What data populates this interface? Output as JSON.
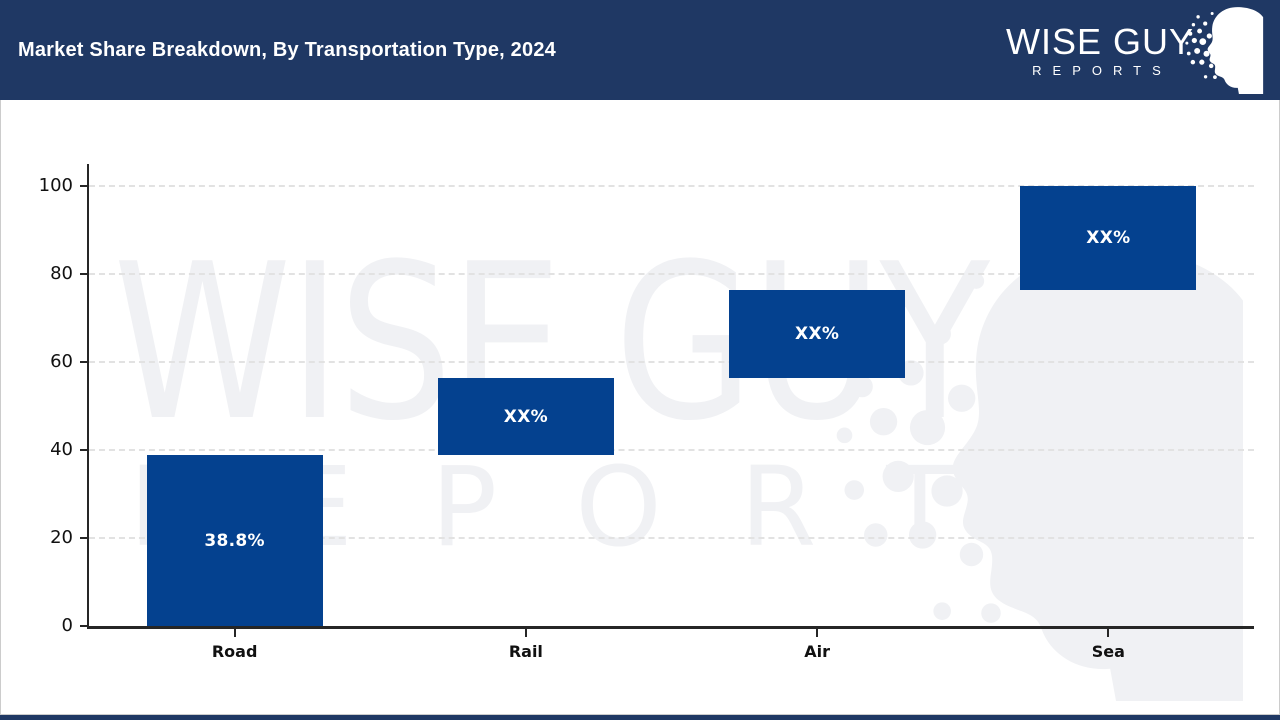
{
  "header": {
    "title": "Market Share Breakdown, By Transportation Type, 2024",
    "logo": {
      "name": "WISE GUY",
      "tagline": "REPORTS"
    }
  },
  "watermark": {
    "big_text": "WISE GUY",
    "spaced_text": "REPORTS"
  },
  "chart_data": {
    "type": "bar",
    "subtype": "floating-waterfall",
    "title": "Market Share Breakdown, By Transportation Type, 2024",
    "categories": [
      "Road",
      "Rail",
      "Air",
      "Sea"
    ],
    "segments": [
      {
        "category": "Road",
        "start": 0,
        "end": 38.8,
        "label": "38.8%"
      },
      {
        "category": "Rail",
        "start": 38.8,
        "end": 56.4,
        "label": "XX%"
      },
      {
        "category": "Air",
        "start": 56.4,
        "end": 76.4,
        "label": "XX%"
      },
      {
        "category": "Sea",
        "start": 76.4,
        "end": 100,
        "label": "XX%"
      }
    ],
    "xlabel": "",
    "ylabel": "",
    "ylim": [
      0,
      105
    ],
    "yticks": [
      0,
      20,
      40,
      60,
      80,
      100
    ],
    "grid": "horizontal-dashed",
    "legend": "none",
    "colors": {
      "bar": "#04418f",
      "bar_label": "#ffffff",
      "axis": "#262626",
      "grid": "#e2e2e2",
      "header_bg": "#1f3864",
      "watermark": "#f0f1f4"
    }
  }
}
